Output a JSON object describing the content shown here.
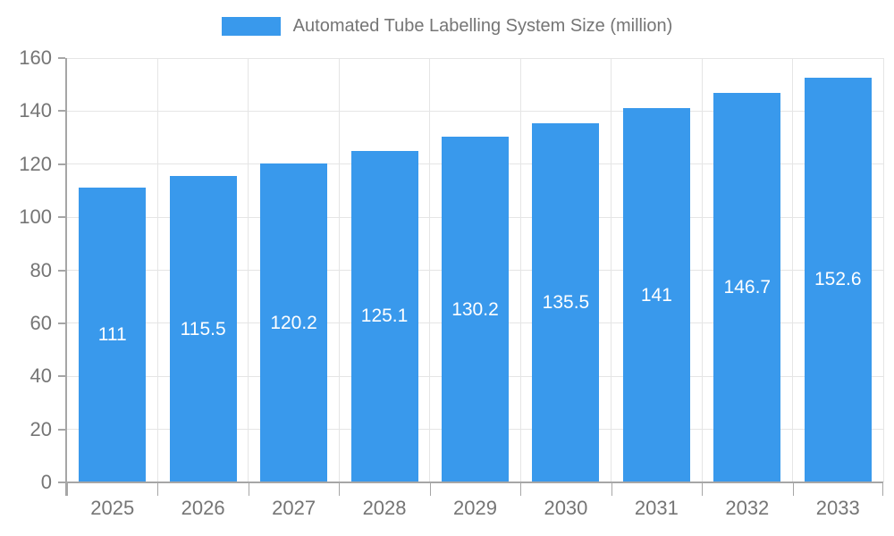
{
  "legend": {
    "label": "Automated Tube Labelling System Size (million)"
  },
  "colors": {
    "bar": "#3999EC",
    "grid": "#e5e5e5",
    "axis": "#a6a6a6",
    "axis_text": "#757575",
    "bar_label_text": "#ffffff",
    "background": "#ffffff"
  },
  "chart_data": {
    "type": "bar",
    "title": "Automated Tube Labelling System Size (million)",
    "series_name": "Automated Tube Labelling System Size (million)",
    "categories": [
      "2025",
      "2026",
      "2027",
      "2028",
      "2029",
      "2030",
      "2031",
      "2032",
      "2033"
    ],
    "values": [
      111,
      115.5,
      120.2,
      125.1,
      130.2,
      135.5,
      141,
      146.7,
      152.6
    ],
    "value_labels": [
      "111",
      "115.5",
      "120.2",
      "125.1",
      "130.2",
      "135.5",
      "141",
      "146.7",
      "152.6"
    ],
    "xlabel": "",
    "ylabel": "",
    "ylim": [
      0,
      160
    ],
    "yticks": [
      0,
      20,
      40,
      60,
      80,
      100,
      120,
      140,
      160
    ],
    "ytick_labels": [
      "0",
      "20",
      "40",
      "60",
      "80",
      "100",
      "120",
      "140",
      "160"
    ],
    "grid": true,
    "legend_position": "top-center",
    "bar_label_position": "inside-center"
  }
}
